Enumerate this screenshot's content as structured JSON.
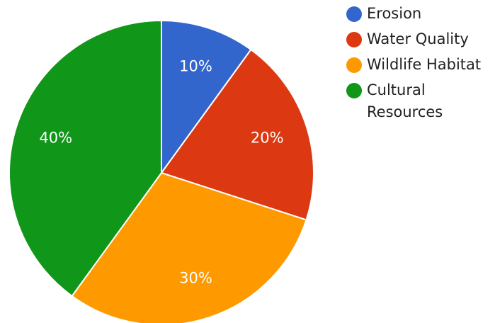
{
  "chart_data": {
    "type": "pie",
    "title": "",
    "legend_position": "right",
    "slices": [
      {
        "label": "Erosion",
        "value": 10,
        "display": "10%",
        "color": "#3366cc"
      },
      {
        "label": "Water Quality",
        "value": 20,
        "display": "20%",
        "color": "#dc3912"
      },
      {
        "label": "Wildlife Habitat",
        "value": 30,
        "display": "30%",
        "color": "#ff9900"
      },
      {
        "label": "Cultural Resources",
        "value": 40,
        "display": "40%",
        "color": "#109618"
      }
    ]
  }
}
